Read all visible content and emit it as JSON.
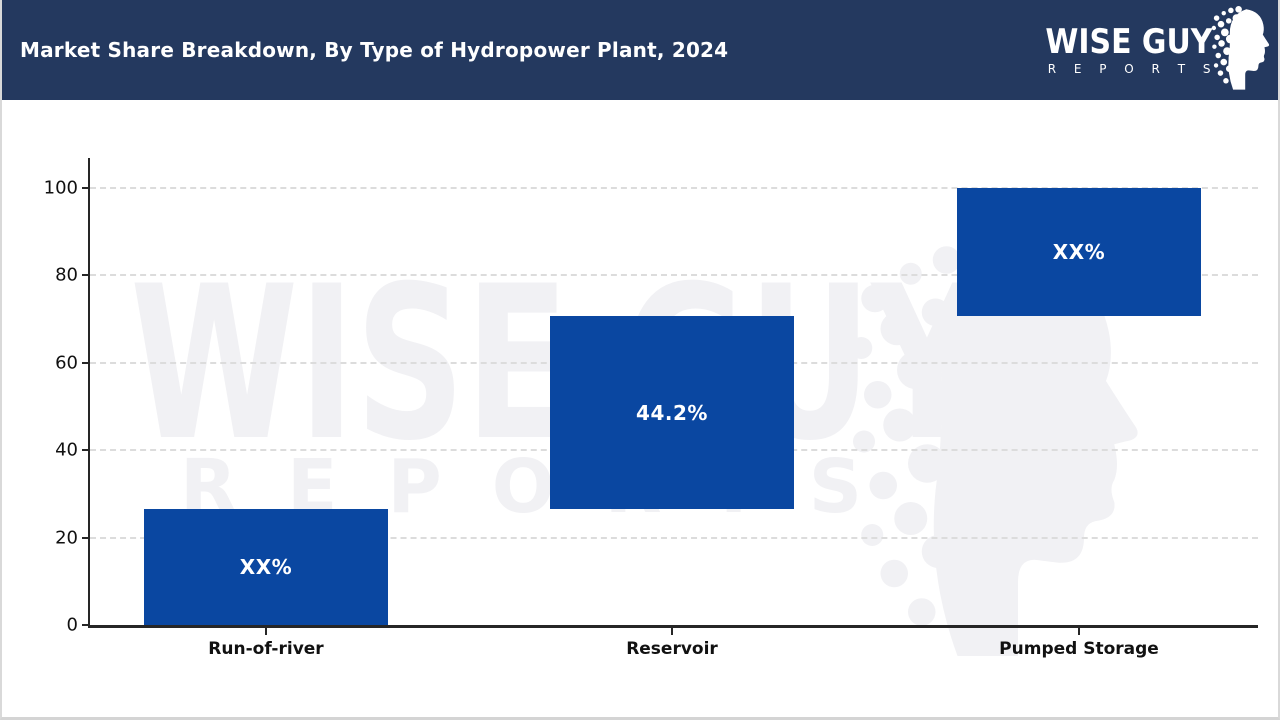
{
  "header": {
    "title": "Market Share Breakdown, By Type of Hydropower Plant, 2024",
    "bg_color": "#24395f",
    "logo": {
      "line1": "WISE GUY",
      "line2": "R E P O R T S"
    }
  },
  "watermark": {
    "line1": "WISE GUY",
    "line2": "REPORTS",
    "color": "#f1f1f4"
  },
  "chart_data": {
    "type": "bar",
    "subtype": "floating-segment-waterfall",
    "title": "Market Share Breakdown, By Type of Hydropower Plant, 2024",
    "categories": [
      "Run-of-river",
      "Reservoir",
      "Pumped Storage"
    ],
    "series": [
      {
        "name": "Market share (%)",
        "segments": [
          {
            "category": "Run-of-river",
            "start": 0,
            "end": 26.5,
            "label": "XX%"
          },
          {
            "category": "Reservoir",
            "start": 26.5,
            "end": 70.7,
            "label": "44.2%"
          },
          {
            "category": "Pumped Storage",
            "start": 70.7,
            "end": 100,
            "label": "XX%"
          }
        ]
      }
    ],
    "yticks": [
      0,
      20,
      40,
      60,
      80,
      100
    ],
    "ylim": [
      0,
      106
    ],
    "xlabel": "",
    "ylabel": "",
    "grid": "horizontal-dashed",
    "legend": "none",
    "bar_color": "#0a47a1",
    "bar_label_color": "#ffffff",
    "axis_color": "#262626",
    "grid_color": "#dcdcdc"
  }
}
